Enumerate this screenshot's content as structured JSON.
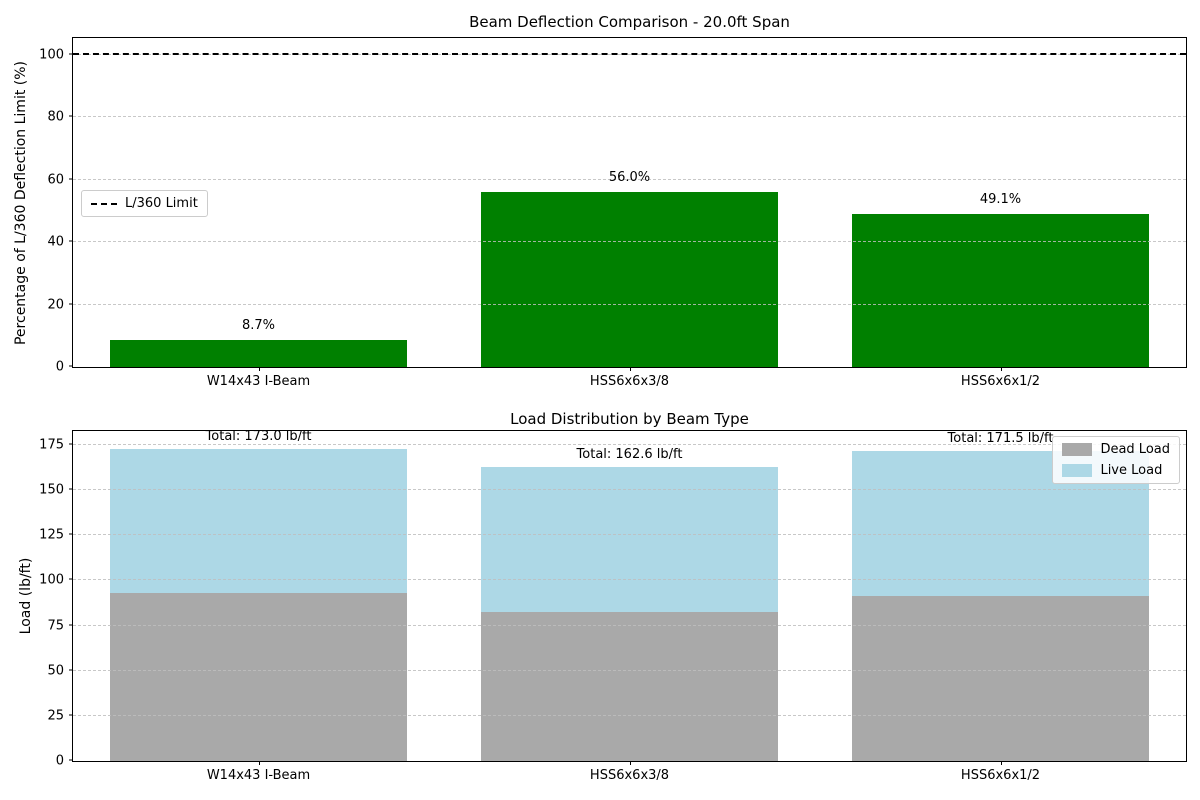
{
  "figure": {
    "background": "#ffffff"
  },
  "chart_data": [
    {
      "type": "bar",
      "title": "Beam Deflection Comparison - 20.0ft Span",
      "xlabel": "",
      "ylabel": "Percentage of L/360 Deflection Limit (%)",
      "categories": [
        "W14x43 I-Beam",
        "HSS6x6x3/8",
        "HSS6x6x1/2"
      ],
      "values": [
        8.7,
        56.0,
        49.1
      ],
      "bar_labels": [
        "8.7%",
        "56.0%",
        "49.1%"
      ],
      "bar_color": "#008000",
      "yticks": [
        0,
        20,
        40,
        60,
        80,
        100
      ],
      "ylim": [
        0,
        105.4
      ],
      "grid": "y-axis dashed",
      "legend_position": "center-left",
      "limit_line": {
        "value": 100,
        "label": "L/360 Limit",
        "color": "#000000",
        "style": "dashed"
      }
    },
    {
      "type": "stacked-bar",
      "title": "Load Distribution by Beam Type",
      "xlabel": "",
      "ylabel": "Load (lb/ft)",
      "categories": [
        "W14x43 I-Beam",
        "HSS6x6x3/8",
        "HSS6x6x1/2"
      ],
      "series": [
        {
          "name": "Dead Load",
          "color": "#a9a9a9",
          "values": [
            93.0,
            82.6,
            91.5
          ]
        },
        {
          "name": "Live Load",
          "color": "#add8e6",
          "values": [
            80.0,
            80.0,
            80.0
          ]
        }
      ],
      "totals": [
        173.0,
        162.6,
        171.5
      ],
      "total_labels": [
        "Total: 173.0 lb/ft",
        "Total: 162.6 lb/ft",
        "Total: 171.5 lb/ft"
      ],
      "yticks": [
        0,
        25,
        50,
        75,
        100,
        125,
        150,
        175
      ],
      "ylim": [
        0,
        182.8
      ],
      "grid": "y-axis dashed",
      "legend_position": "top-right"
    }
  ]
}
